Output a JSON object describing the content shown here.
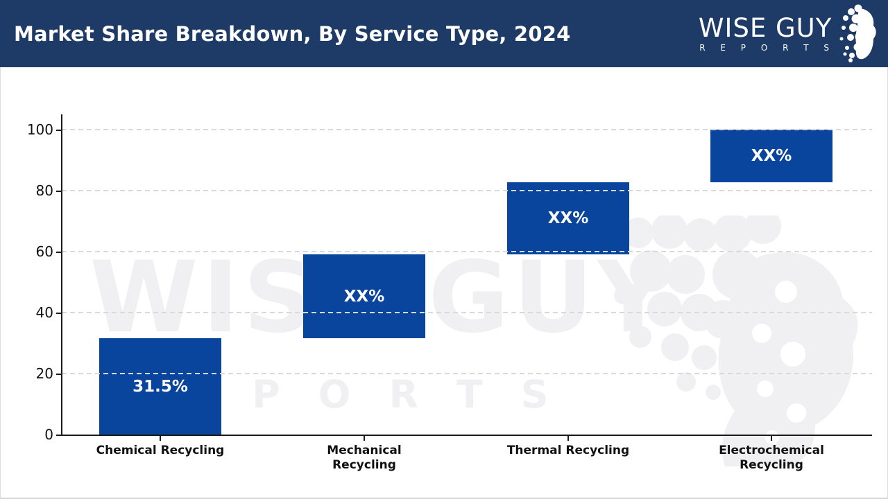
{
  "header": {
    "title": "Market Share Breakdown, By Service Type, 2024",
    "bg_color": "#1e3a66",
    "logo_line1": "WISE GUY",
    "logo_line2": "R E P O R T S"
  },
  "watermark": {
    "line1": "WISE GUY",
    "line2": "R E P O R T S"
  },
  "chart_data": {
    "type": "bar",
    "subtype": "waterfall",
    "title": "Market Share Breakdown, By Service Type, 2024",
    "xlabel": "",
    "ylabel": "",
    "ylim": [
      0,
      100
    ],
    "yticks": [
      0,
      20,
      40,
      60,
      80,
      100
    ],
    "grid": "horizontal-dashed",
    "legend": "none",
    "bar_color": "#09449d",
    "value_label_color": "#ffffff",
    "categories": [
      "Chemical Recycling",
      "Mechanical Recycling",
      "Thermal Recycling",
      "Electrochemical Recycling"
    ],
    "bars": [
      {
        "category": "Chemical Recycling",
        "label_lines": [
          "Chemical Recycling"
        ],
        "start": 0,
        "end": 31.5,
        "value": 31.5,
        "value_label": "31.5%"
      },
      {
        "category": "Mechanical Recycling",
        "label_lines": [
          "Mechanical",
          "Recycling"
        ],
        "start": 31.5,
        "end": 59.0,
        "value": 27.5,
        "value_label": "XX%"
      },
      {
        "category": "Thermal Recycling",
        "label_lines": [
          "Thermal Recycling"
        ],
        "start": 59.0,
        "end": 82.7,
        "value": 23.7,
        "value_label": "XX%"
      },
      {
        "category": "Electrochemical Recycling",
        "label_lines": [
          "Electrochemical",
          "Recycling"
        ],
        "start": 82.7,
        "end": 100,
        "value": 17.3,
        "value_label": "XX%"
      }
    ]
  }
}
